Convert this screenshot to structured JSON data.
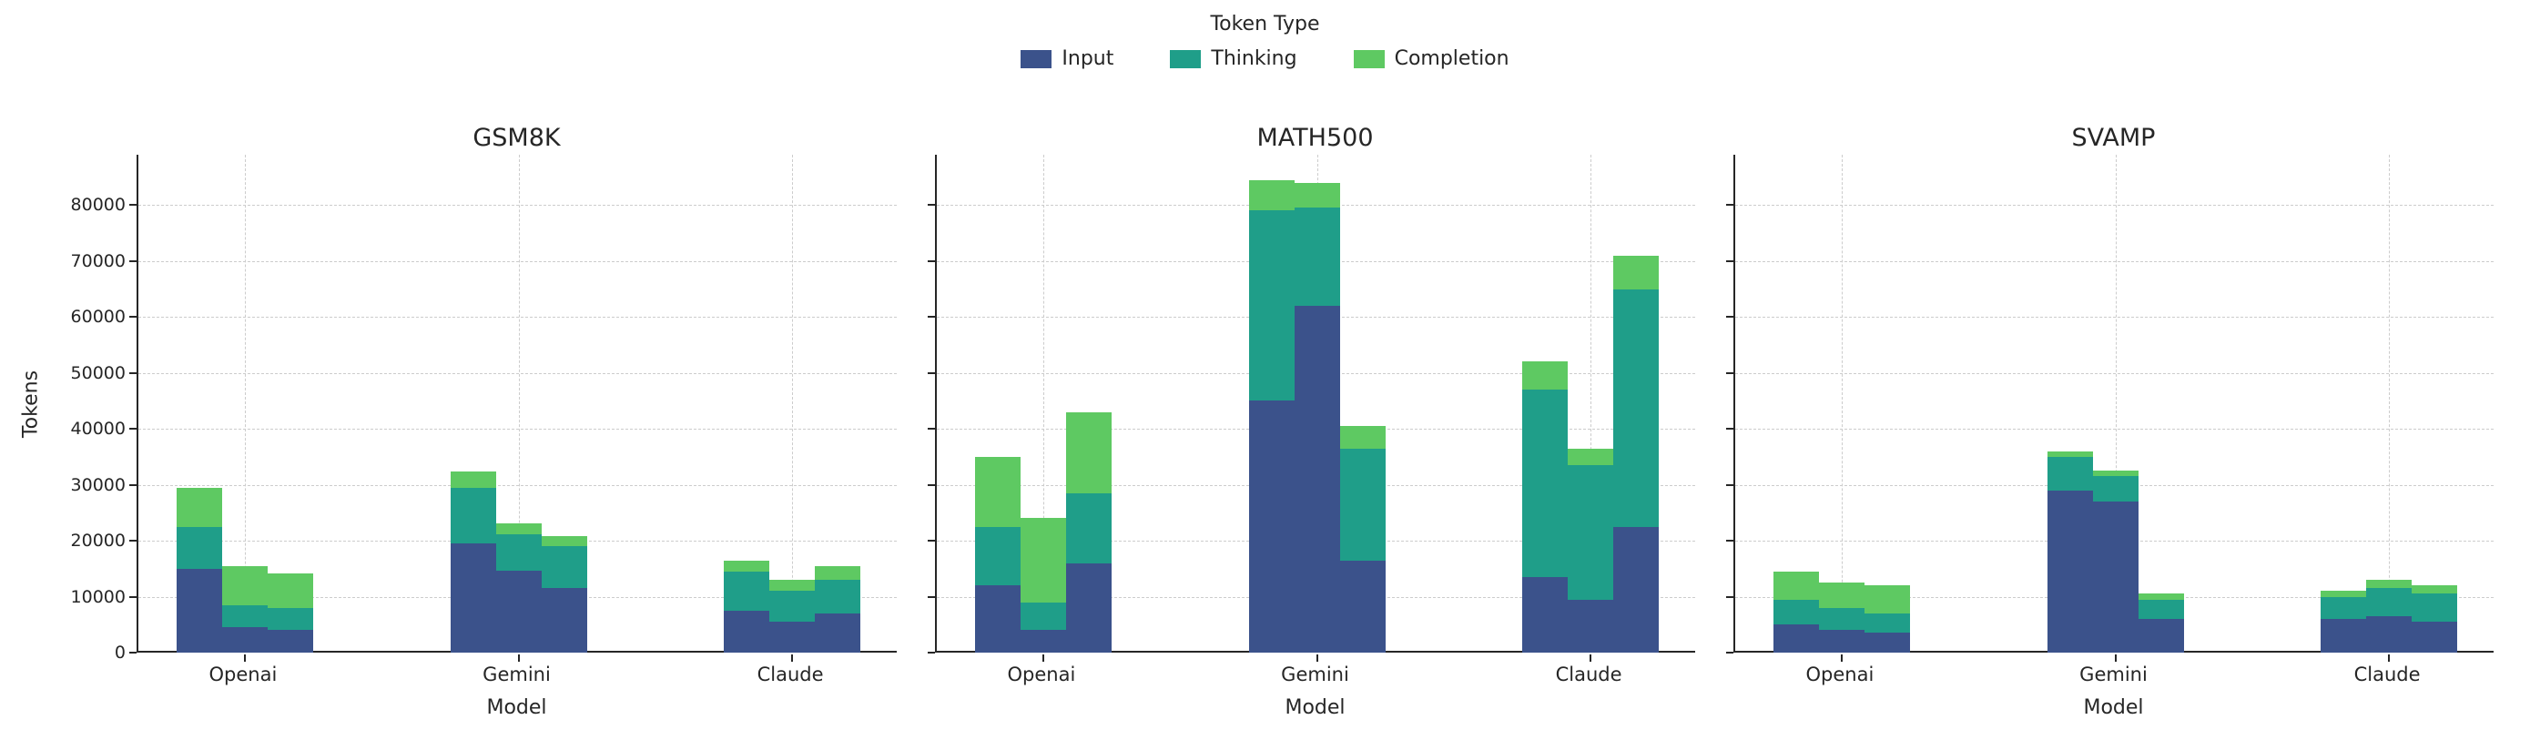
{
  "figure": {
    "background": "#ffffff"
  },
  "legend": {
    "title": "Token Type",
    "position": "top-center",
    "items": [
      {
        "label": "Input",
        "color": "#3b528b"
      },
      {
        "label": "Thinking",
        "color": "#1f9e89"
      },
      {
        "label": "Completion",
        "color": "#5ec962"
      }
    ]
  },
  "chart_data": [
    {
      "type": "bar",
      "stacked": true,
      "title": "GSM8K",
      "xlabel": "Model",
      "ylabel": "Tokens",
      "categories": [
        "Openai",
        "Gemini",
        "Claude"
      ],
      "series_names": [
        "Input",
        "Thinking",
        "Completion"
      ],
      "bars_per_category": 3,
      "ylim": [
        0,
        89000
      ],
      "yticks": [
        0,
        10000,
        20000,
        30000,
        40000,
        50000,
        60000,
        70000,
        80000
      ],
      "grid": "dashed horizontal and vertical",
      "values": [
        [
          [
            15000,
            7500,
            7000
          ],
          [
            4500,
            4000,
            7000
          ],
          [
            4000,
            4000,
            6200
          ]
        ],
        [
          [
            19500,
            10000,
            2800
          ],
          [
            14700,
            6400,
            2000
          ],
          [
            11500,
            7500,
            1800
          ]
        ],
        [
          [
            7500,
            7000,
            2000
          ],
          [
            5500,
            5500,
            2000
          ],
          [
            7000,
            6000,
            2500
          ]
        ]
      ]
    },
    {
      "type": "bar",
      "stacked": true,
      "title": "MATH500",
      "xlabel": "Model",
      "ylabel": "",
      "categories": [
        "Openai",
        "Gemini",
        "Claude"
      ],
      "series_names": [
        "Input",
        "Thinking",
        "Completion"
      ],
      "bars_per_category": 3,
      "ylim": [
        0,
        89000
      ],
      "yticks": [
        0,
        10000,
        20000,
        30000,
        40000,
        50000,
        60000,
        70000,
        80000
      ],
      "grid": "dashed horizontal and vertical",
      "values": [
        [
          [
            12000,
            10500,
            12500
          ],
          [
            4000,
            5000,
            15000
          ],
          [
            16000,
            12500,
            14500
          ]
        ],
        [
          [
            45000,
            34000,
            5500
          ],
          [
            62000,
            17500,
            4500
          ],
          [
            16500,
            20000,
            4000
          ]
        ],
        [
          [
            13500,
            33500,
            5000
          ],
          [
            9500,
            24000,
            3000
          ],
          [
            22500,
            42500,
            6000
          ]
        ]
      ]
    },
    {
      "type": "bar",
      "stacked": true,
      "title": "SVAMP",
      "xlabel": "Model",
      "ylabel": "",
      "categories": [
        "Openai",
        "Gemini",
        "Claude"
      ],
      "series_names": [
        "Input",
        "Thinking",
        "Completion"
      ],
      "bars_per_category": 3,
      "ylim": [
        0,
        89000
      ],
      "yticks": [
        0,
        10000,
        20000,
        30000,
        40000,
        50000,
        60000,
        70000,
        80000
      ],
      "grid": "dashed horizontal and vertical",
      "values": [
        [
          [
            5000,
            4500,
            5000
          ],
          [
            4000,
            4000,
            4500
          ],
          [
            3500,
            3500,
            5000
          ]
        ],
        [
          [
            29000,
            6000,
            1000
          ],
          [
            27000,
            4500,
            1000
          ],
          [
            6000,
            3500,
            1000
          ]
        ],
        [
          [
            6000,
            4000,
            1000
          ],
          [
            6500,
            5000,
            1500
          ],
          [
            5500,
            5000,
            1500
          ]
        ]
      ]
    }
  ]
}
